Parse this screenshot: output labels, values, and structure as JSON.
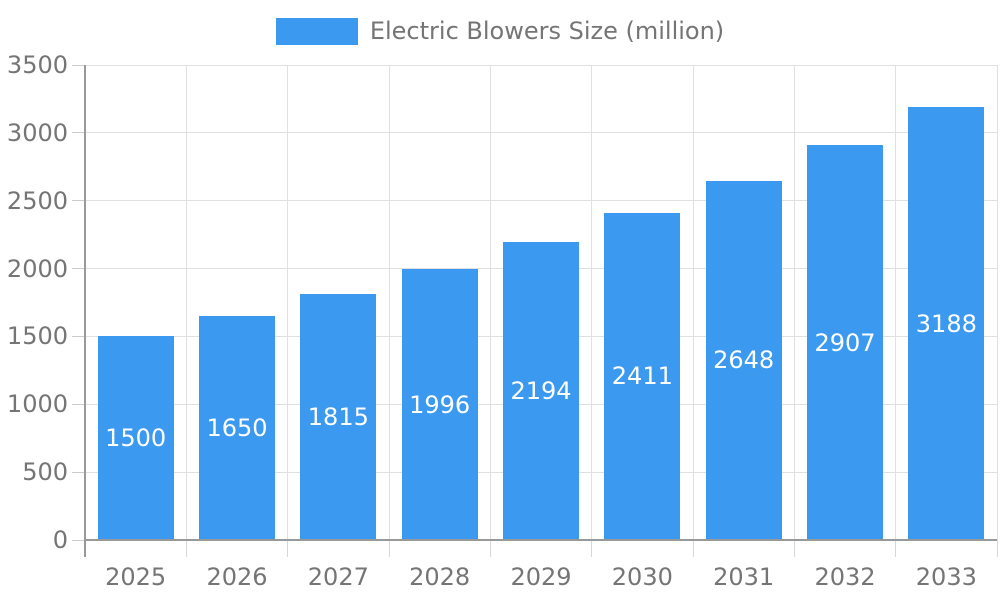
{
  "legend": {
    "label": "Electric Blowers Size (million)",
    "swatch_color": "#3B99F0"
  },
  "chart_data": {
    "type": "bar",
    "title": "Electric Blowers Size (million)",
    "series_name": "Electric Blowers Size (million)",
    "categories": [
      "2025",
      "2026",
      "2027",
      "2028",
      "2029",
      "2030",
      "2031",
      "2032",
      "2033"
    ],
    "values": [
      1500,
      1650,
      1815,
      1996,
      2194,
      2411,
      2648,
      2907,
      3188
    ],
    "xlabel": "",
    "ylabel": "",
    "ylim": [
      0,
      3500
    ],
    "y_ticks": [
      0,
      500,
      1000,
      1500,
      2000,
      2500,
      3000,
      3500
    ],
    "grid": true,
    "legend_position": "top",
    "bar_color": "#3B99F0",
    "value_label_color": "#FFFFFF",
    "axis_text_color": "#757575",
    "grid_color": "#E0E0E0",
    "axis_line_color": "#999999"
  }
}
